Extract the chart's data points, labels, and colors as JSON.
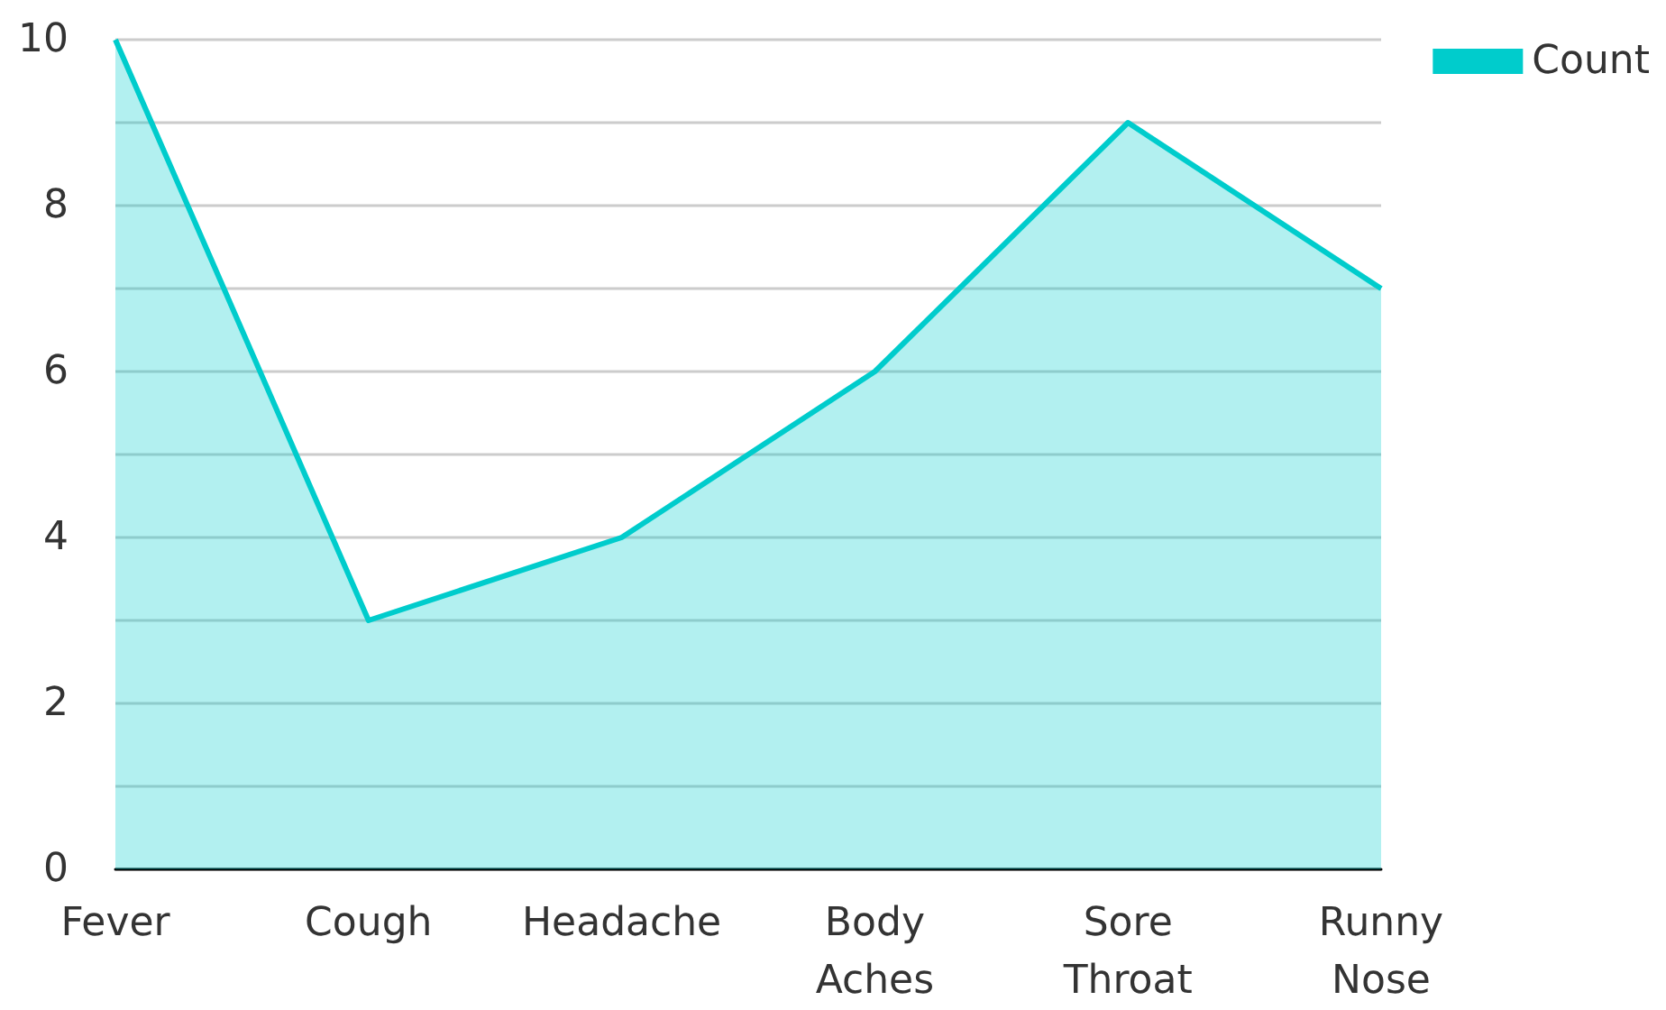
{
  "chart_data": {
    "type": "area",
    "categories": [
      "Fever",
      "Cough",
      "Headache",
      "Body Aches",
      "Sore Throat",
      "Runny Nose"
    ],
    "series": [
      {
        "name": "Count",
        "color": "#00cccc",
        "values": [
          10,
          3,
          4,
          6,
          9,
          7
        ]
      }
    ],
    "ylim": [
      0,
      10
    ],
    "yticks": [
      0,
      {
        "value": 1,
        "label": null
      },
      2,
      {
        "value": 3,
        "label": null
      },
      4,
      {
        "value": 5,
        "label": null
      },
      6,
      {
        "value": 7,
        "label": null
      },
      8,
      {
        "value": 9,
        "label": null
      },
      10
    ],
    "grid": "y",
    "legend": "top right",
    "marker": "none",
    "line_style": "solid"
  }
}
